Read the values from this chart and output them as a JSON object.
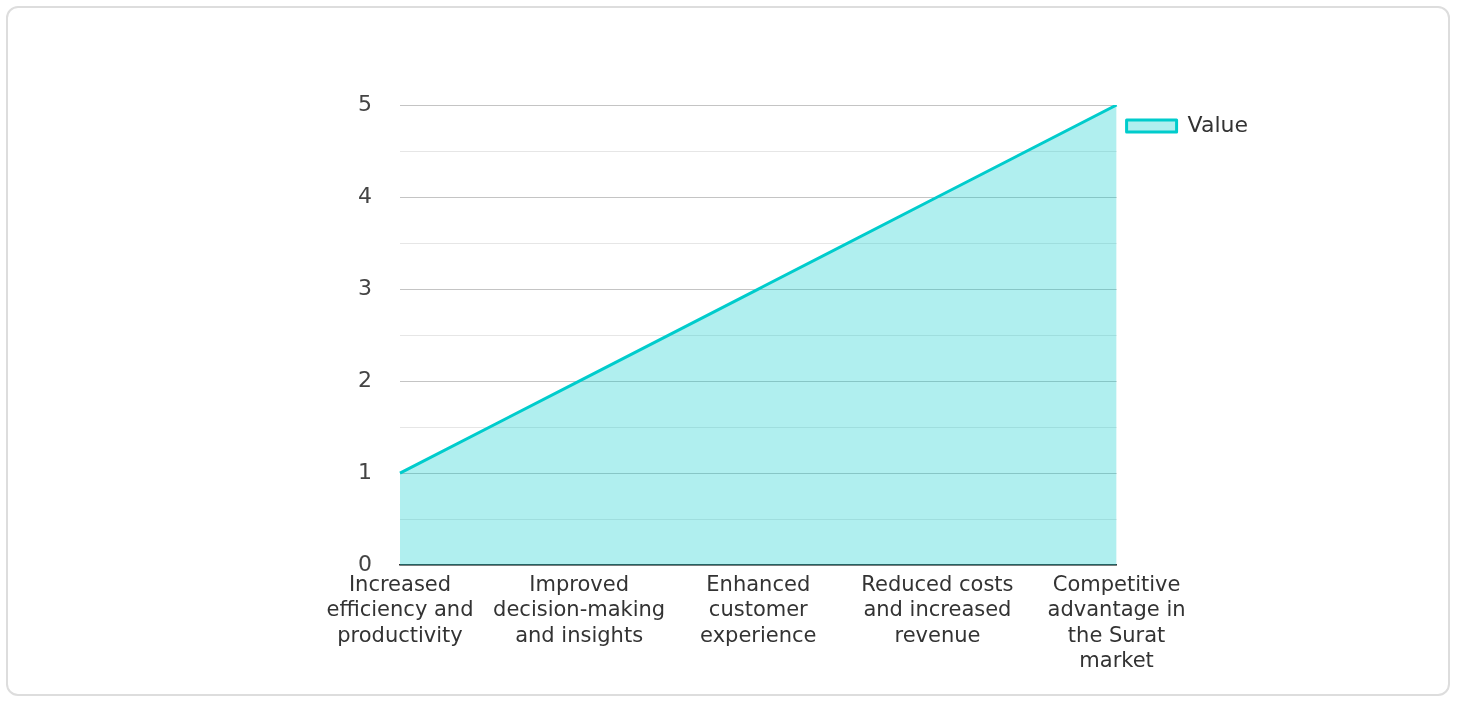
{
  "chart_data": {
    "type": "area",
    "categories": [
      "Increased efficiency and productivity",
      "Improved decision-making and insights",
      "Enhanced customer experience",
      "Reduced costs and increased revenue",
      "Competitive advantage in the Surat market"
    ],
    "series": [
      {
        "name": "Value",
        "color": "#00cccc",
        "values": [
          1,
          2,
          3,
          4,
          5
        ]
      }
    ],
    "ylim": [
      0,
      5
    ],
    "yticks": [
      0,
      {
        "value": 0.5,
        "label": null
      },
      1,
      {
        "value": 1.5,
        "label": null
      },
      2,
      {
        "value": 2.5,
        "label": null
      },
      3,
      {
        "value": 3.5,
        "label": null
      },
      4,
      {
        "value": 4.5,
        "label": null
      },
      5
    ],
    "grid": "y",
    "legend": "top right",
    "marker": "none"
  }
}
